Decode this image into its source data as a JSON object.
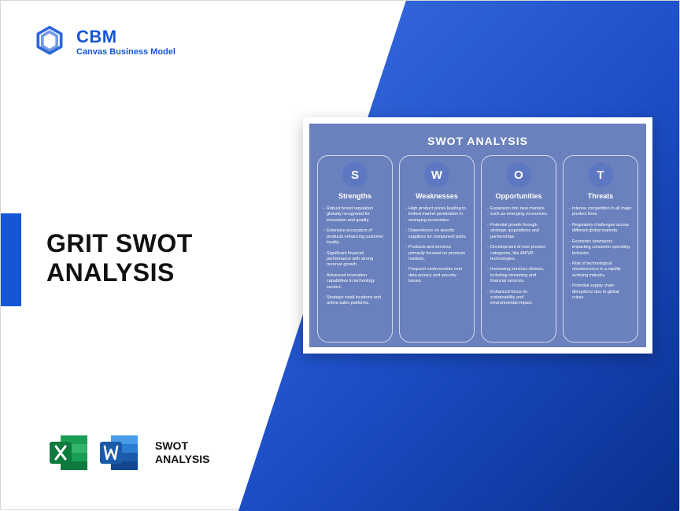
{
  "colors": {
    "brand_blue": "#1556d6",
    "gradient_start": "#3b6fe0",
    "gradient_mid": "#1e50c9",
    "gradient_end": "#0a2f8f",
    "card_bg": "#6b81bd",
    "card_text": "#ffffff",
    "circle_bg": "#5e77c2",
    "title_black": "#111111",
    "excel_green": "#1a9e55",
    "excel_dark": "#0f7a3e",
    "word_blue": "#2b7cd3",
    "word_dark": "#1a5aa8"
  },
  "logo": {
    "brand": "CBM",
    "tagline": "Canvas Business Model"
  },
  "title_line1": "GRIT SWOT",
  "title_line2": "ANALYSIS",
  "footer": {
    "label_line1": "SWOT",
    "label_line2": "ANALYSIS"
  },
  "card": {
    "title": "SWOT ANALYSIS",
    "columns": [
      {
        "letter": "S",
        "heading": "Strengths",
        "items": [
          "Robust brand reputation globally recognized for innovation and quality.",
          "Extensive ecosystem of products enhancing customer loyalty.",
          "Significant financial performance with strong revenue growth.",
          "Advanced innovation capabilities in technology sectors.",
          "Strategic retail locations and online sales platforms."
        ]
      },
      {
        "letter": "W",
        "heading": "Weaknesses",
        "items": [
          "High product prices leading to limited market penetration in emerging economies.",
          "Dependence on specific suppliers for component parts.",
          "Products and services primarily focused on premium markets.",
          "Frequent controversies over data privacy and security issues."
        ]
      },
      {
        "letter": "O",
        "heading": "Opportunities",
        "items": [
          "Expansion into new markets such as emerging economies.",
          "Potential growth through strategic acquisitions and partnerships.",
          "Development of new product categories, like AR/VR technologies.",
          "Increasing services division, including streaming and financial services.",
          "Enhanced focus on sustainability and environmental impact."
        ]
      },
      {
        "letter": "T",
        "heading": "Threats",
        "items": [
          "Intense competition in all major product lines.",
          "Regulatory challenges across different global markets.",
          "Economic downturns impacting consumer spending behavior.",
          "Risk of technological obsolescence in a rapidly evolving industry.",
          "Potential supply chain disruptions due to global crises."
        ]
      }
    ]
  }
}
